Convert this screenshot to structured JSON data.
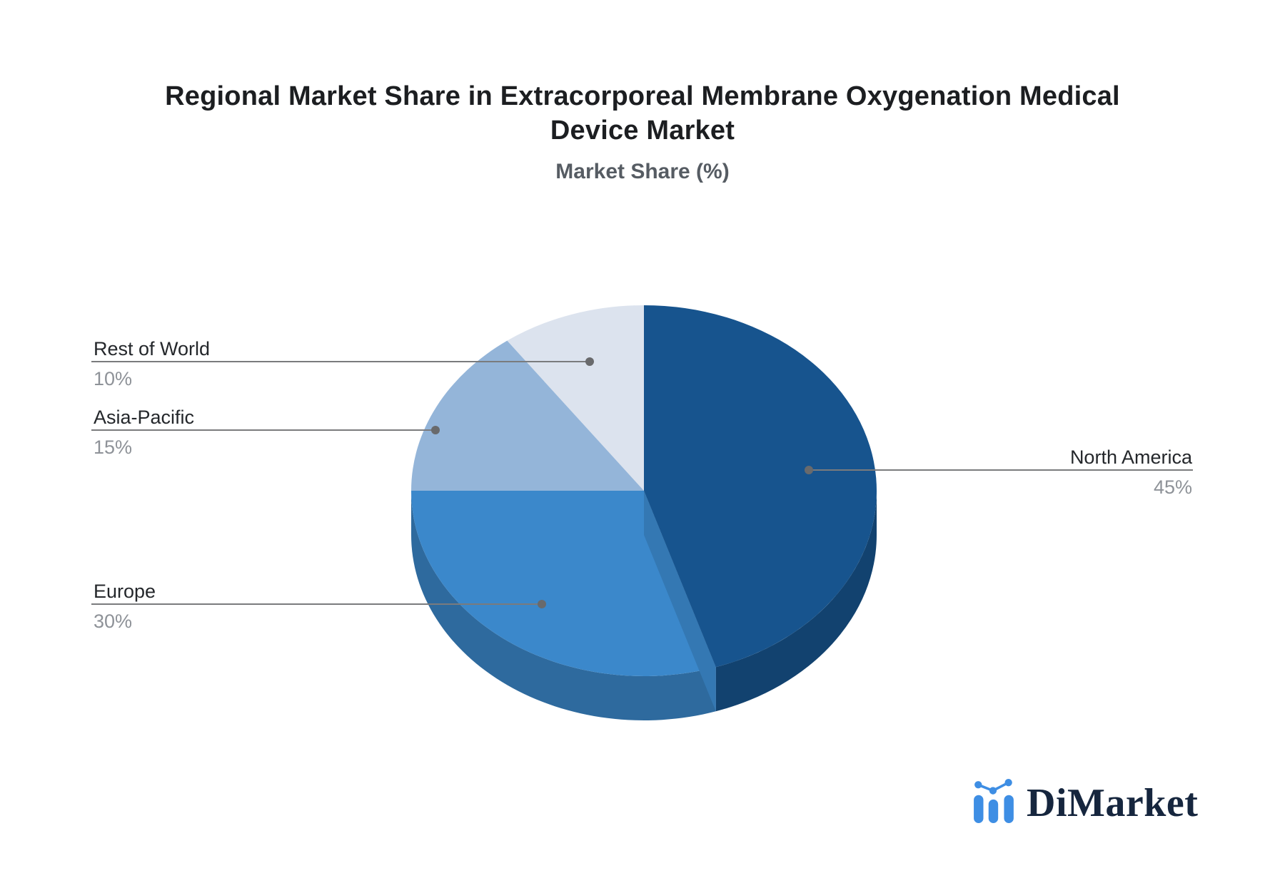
{
  "header": {
    "title": "Regional Market Share in Extracorporeal Membrane Oxygenation Medical Device Market",
    "subtitle": "Market Share (%)"
  },
  "chart_data": {
    "type": "pie",
    "title": "Regional Market Share in Extracorporeal Membrane Oxygenation Medical Device Market",
    "subtitle": "Market Share (%)",
    "unit": "%",
    "effect": "3d",
    "start_angle_deg": 0,
    "direction": "clockwise",
    "legend_position": "none",
    "slices": [
      {
        "label": "North America",
        "value": 45,
        "pct_text": "45%",
        "color": "#17548E",
        "label_side": "right"
      },
      {
        "label": "Europe",
        "value": 30,
        "pct_text": "30%",
        "color": "#3B88CB",
        "label_side": "left"
      },
      {
        "label": "Asia-Pacific",
        "value": 15,
        "pct_text": "15%",
        "color": "#94B5D9",
        "label_side": "left"
      },
      {
        "label": "Rest of World",
        "value": 10,
        "pct_text": "10%",
        "color": "#DCE3EE",
        "label_side": "left"
      }
    ],
    "colors": {
      "leader_line": "#7A7B7D",
      "leader_dot": "#696A6C",
      "category_label": "#24272B",
      "value_label": "#8E9298",
      "title": "#1C1E21",
      "subtitle": "#565C63"
    }
  },
  "brand": {
    "name": "DiMarket",
    "icon": "bar-line-chart-icon",
    "text_color": "#16263E",
    "icon_color": "#3E8EE4"
  }
}
